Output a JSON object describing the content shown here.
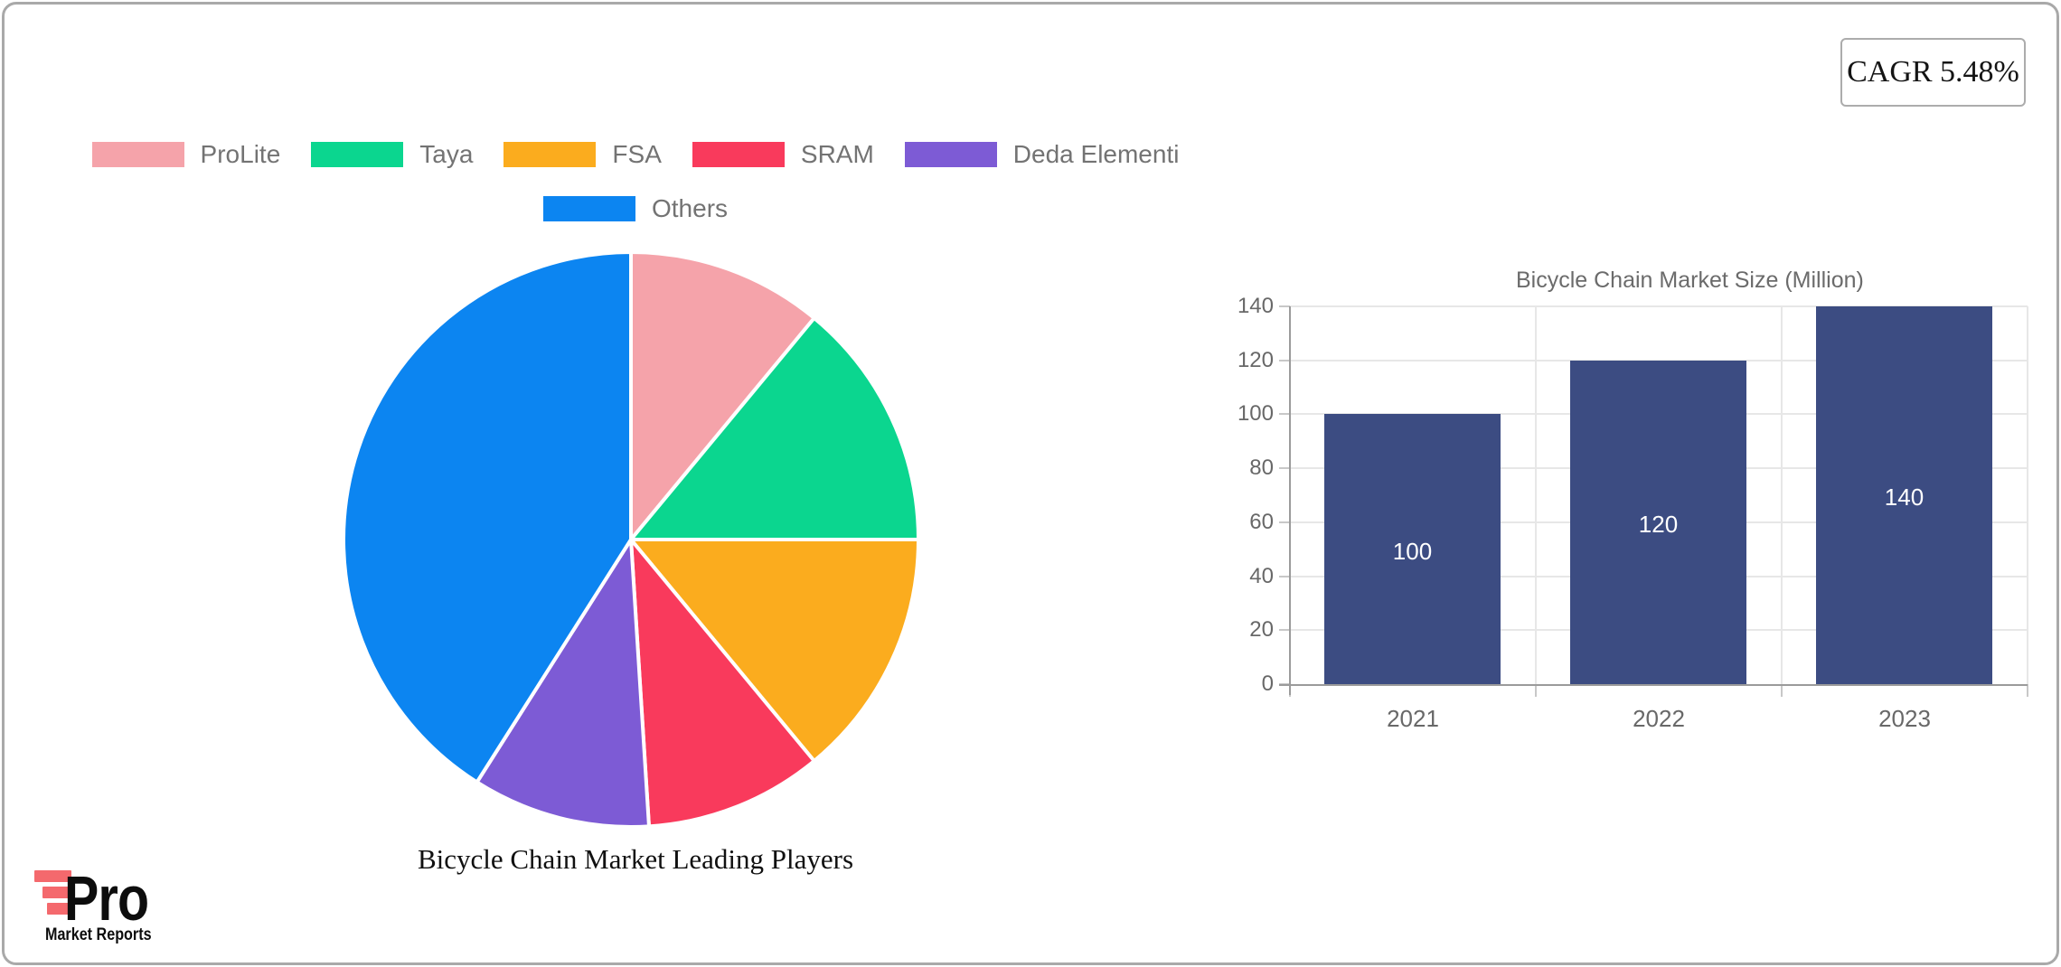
{
  "header": {
    "cagr_label": "CAGR 5.48%"
  },
  "logo": {
    "title": "Pro",
    "subtitle": "Market Reports",
    "accent_color": "#f4696d",
    "text_color": "#0d0d0d"
  },
  "chart_data": [
    {
      "type": "pie",
      "title": "Bicycle Chain Market Leading Players",
      "units": "percent",
      "start_angle_deg": -90,
      "direction": "clockwise",
      "legend_position": "top",
      "slices": [
        {
          "label": "ProLite",
          "value": 11,
          "color": "#f5a3aa"
        },
        {
          "label": "Taya",
          "value": 14,
          "color": "#0bd68f"
        },
        {
          "label": "FSA",
          "value": 14,
          "color": "#fbac1e"
        },
        {
          "label": "SRAM",
          "value": 10,
          "color": "#f93a5c"
        },
        {
          "label": "Deda Elementi",
          "value": 10,
          "color": "#7d5bd5"
        },
        {
          "label": "Others",
          "value": 41,
          "color": "#0c85f1"
        }
      ]
    },
    {
      "type": "bar",
      "legend_label": "Bicycle Chain Market Size (Million)",
      "categories": [
        "2021",
        "2022",
        "2023"
      ],
      "values": [
        100,
        120,
        140
      ],
      "bar_color": "#3c4c82",
      "value_label_color": "#ffffff",
      "ylim": [
        0,
        140
      ],
      "yticks": [
        0,
        20,
        40,
        60,
        80,
        100,
        120,
        140
      ],
      "grid": true,
      "legend_position": "top"
    }
  ]
}
